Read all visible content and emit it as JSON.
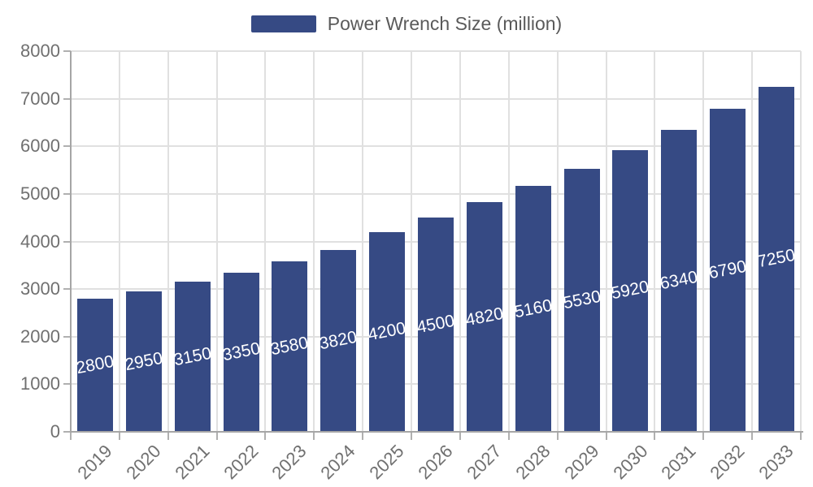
{
  "legend": {
    "label": "Power Wrench Size (million)"
  },
  "chart_data": {
    "type": "bar",
    "title": "",
    "legend_entries": [
      "Power Wrench Size (million)"
    ],
    "legend_position": "top-center",
    "categories": [
      "2019",
      "2020",
      "2021",
      "2022",
      "2023",
      "2024",
      "2025",
      "2026",
      "2027",
      "2028",
      "2029",
      "2030",
      "2031",
      "2032",
      "2033"
    ],
    "series": [
      {
        "name": "Power Wrench Size (million)",
        "values": [
          2800,
          2950,
          3150,
          3350,
          3580,
          3820,
          4200,
          4500,
          4820,
          5160,
          5530,
          5920,
          6340,
          6790,
          7250
        ]
      }
    ],
    "bar_labels_shown": true,
    "bar_label_position": "inside-middle",
    "xlabel": "",
    "ylabel": "",
    "ylim": [
      0,
      8000
    ],
    "ytick_interval": 1000,
    "yticks": [
      0,
      1000,
      2000,
      3000,
      4000,
      5000,
      6000,
      7000,
      8000
    ],
    "grid": true,
    "x_tick_label_rotation_deg": -45,
    "colors": {
      "bar": "#364a84",
      "bar_label": "#ffffff",
      "grid": "#e0e0e0",
      "axis": "#a6a6a6",
      "tick": "#b0b0b0",
      "axis_text": "#707070",
      "legend_text": "#5a5a5a",
      "background": "#ffffff"
    }
  }
}
